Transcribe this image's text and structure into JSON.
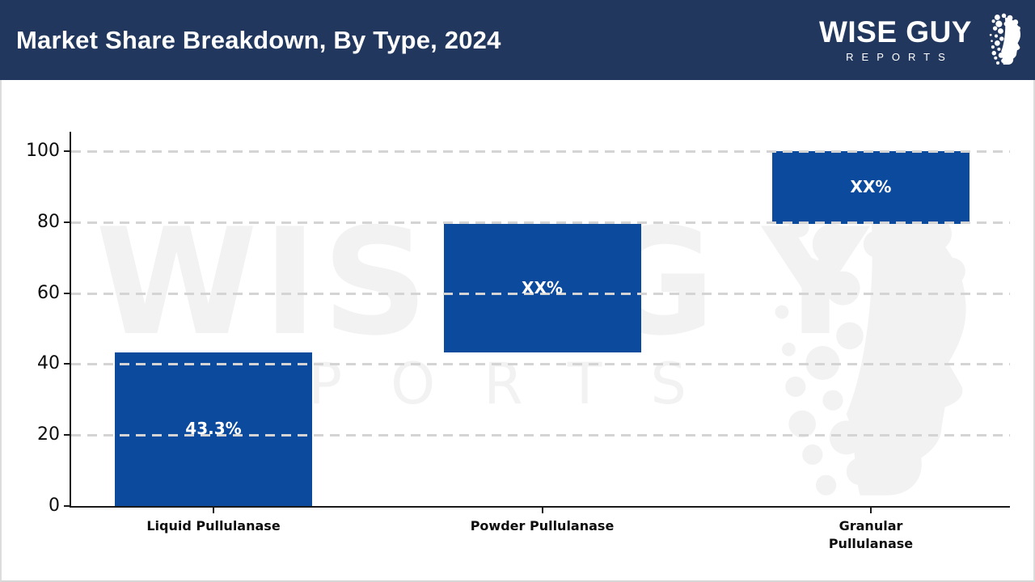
{
  "header": {
    "title": "Market Share Breakdown, By Type, 2024",
    "logo": {
      "line1": "WISE GUY",
      "line2": "REPORTS"
    }
  },
  "watermark": {
    "word1": "WISE G",
    "word2": "Y",
    "word3": "REPORTS"
  },
  "colors": {
    "header_bg": "#22375e",
    "bar": "#0b4a9d",
    "grid": "#d4d4d4",
    "axis": "#1a1a1a",
    "watermark": "#f2f2f2",
    "bar_label_text": "#ffffff"
  },
  "chart_data": {
    "type": "bar",
    "subtype": "waterfall-stacked-breakdown",
    "title": "Market Share Breakdown, By Type, 2024",
    "categories": [
      "Liquid Pullulanase",
      "Powder Pullulanase",
      "Granular Pullulanase"
    ],
    "segments": [
      {
        "category": "Liquid Pullulanase",
        "start": 0,
        "end": 43.3,
        "label": "43.3%"
      },
      {
        "category": "Powder Pullulanase",
        "start": 43.3,
        "end": 79.4,
        "label": "XX%"
      },
      {
        "category": "Granular Pullulanase",
        "start": 79.4,
        "end": 100,
        "label": "XX%"
      }
    ],
    "ylim": [
      0,
      100
    ],
    "yticks": [
      0,
      20,
      40,
      60,
      80,
      100
    ],
    "xlabel": "",
    "ylabel": "",
    "grid": "horizontal-dashed",
    "legend": "none"
  }
}
